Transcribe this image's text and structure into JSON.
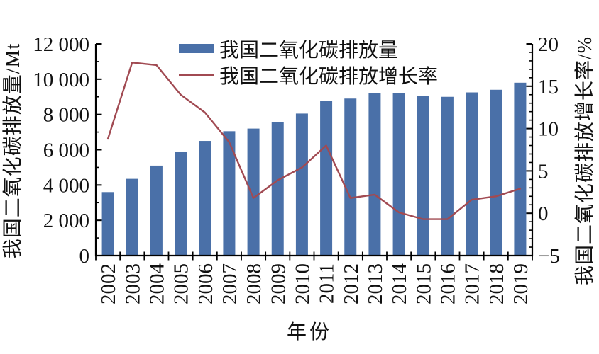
{
  "legend": {
    "bar_label": "我国二氧化碳排放量",
    "line_label": "我国二氧化碳排放增长率"
  },
  "colors": {
    "bar": "#4a70a8",
    "line": "#a14a52",
    "axis": "#000000",
    "background": "#ffffff"
  },
  "chart_data": {
    "type": "bar",
    "subtype": "bar+line dual-axis combo",
    "categories": [
      "2002",
      "2003",
      "2004",
      "2005",
      "2006",
      "2007",
      "2008",
      "2009",
      "2010",
      "2011",
      "2012",
      "2013",
      "2014",
      "2015",
      "2016",
      "2017",
      "2018",
      "2019"
    ],
    "series": [
      {
        "name": "我国二氧化碳排放量",
        "type": "bar",
        "axis": "left",
        "color": "#4a70a8",
        "values": [
          3600,
          4350,
          5100,
          5900,
          6500,
          7050,
          7200,
          7550,
          8050,
          8750,
          8900,
          9200,
          9200,
          9050,
          9000,
          9250,
          9400,
          9800
        ]
      },
      {
        "name": "我国二氧化碳排放增长率",
        "type": "line",
        "axis": "right",
        "color": "#a14a52",
        "values": [
          8.8,
          17.8,
          17.5,
          14.0,
          11.9,
          8.4,
          1.8,
          3.9,
          5.4,
          8.0,
          1.8,
          2.2,
          0.1,
          -0.7,
          -0.7,
          1.6,
          2.0,
          2.9
        ]
      }
    ],
    "xlabel": "年份",
    "left_axis": {
      "label": "我国二氧化碳排放量/Mt",
      "min": 0,
      "max": 12000,
      "major_step": 2000,
      "minor_step": 1000,
      "tick_labels": [
        "0",
        "2 000",
        "4 000",
        "6 000",
        "8 000",
        "10 000",
        "12 000"
      ]
    },
    "right_axis": {
      "label": "我国二氧化碳排放增长率/%",
      "min": -5,
      "max": 20,
      "major_step": 5,
      "minor_step": 1,
      "tick_labels": [
        "−5",
        "0",
        "5",
        "10",
        "15",
        "20"
      ]
    },
    "grid": false,
    "legend_position": "top-center"
  }
}
